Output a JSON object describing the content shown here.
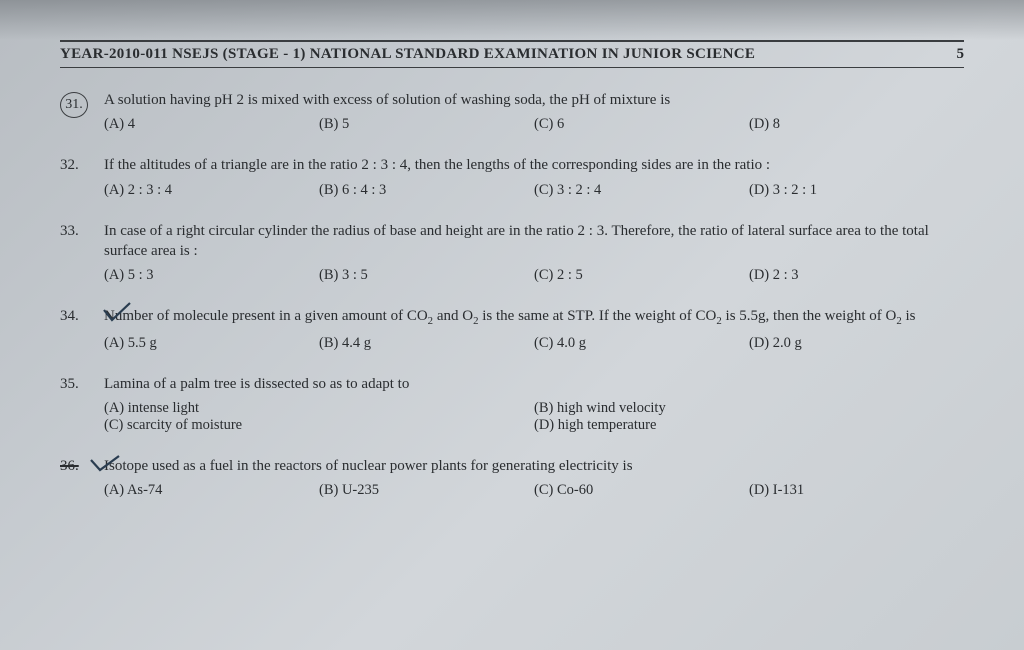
{
  "header": {
    "title": "YEAR-2010-011 NSEJS (STAGE - 1) NATIONAL STANDARD EXAMINATION IN JUNIOR SCIENCE",
    "page_number": "5"
  },
  "questions": [
    {
      "num": "31.",
      "circled": true,
      "text": "A solution having pH 2 is mixed with excess of solution of washing soda, the pH of mixture is",
      "opts": [
        "(A) 4",
        "(B) 5",
        "(C) 6",
        "(D) 8"
      ],
      "cols": 4
    },
    {
      "num": "32.",
      "circled": false,
      "text": "If the altitudes of a triangle are in the ratio 2 : 3 : 4, then the lengths of the corresponding sides are in the ratio :",
      "opts": [
        "(A) 2 : 3 : 4",
        "(B) 6 : 4 : 3",
        "(C) 3 : 2 : 4",
        "(D) 3 : 2 : 1"
      ],
      "cols": 4
    },
    {
      "num": "33.",
      "circled": false,
      "text": "In case of a right circular cylinder the radius of base and height are in the ratio 2 : 3. Therefore, the ratio of lateral surface area to the total surface area is :",
      "opts": [
        "(A) 5 : 3",
        "(B) 3 : 5",
        "(C) 2 : 5",
        "(D) 2 : 3"
      ],
      "cols": 4
    },
    {
      "num": "34.",
      "circled": false,
      "checkmark": true,
      "text_html": "Number of molecule present in a given amount of CO<sub>2</sub> and O<sub>2</sub> is the same at STP. If the weight of CO<sub>2</sub> is 5.5g, then the weight of O<sub>2</sub> is",
      "opts": [
        "(A) 5.5 g",
        "(B) 4.4 g",
        "(C) 4.0 g",
        "(D) 2.0 g"
      ],
      "cols": 4
    },
    {
      "num": "35.",
      "circled": false,
      "text": "Lamina of a palm tree is dissected so as to adapt to",
      "opts": [
        "(A) intense light",
        "(B) high wind velocity",
        "(C) scarcity of moisture",
        "(D) high temperature"
      ],
      "cols": 2
    },
    {
      "num": "36.",
      "circled": false,
      "strike": true,
      "text": "Isotope used as a fuel in the reactors of nuclear power plants for generating electricity is",
      "opts": [
        "(A) As-74",
        "(B) U-235",
        "(C) Co-60",
        "(D) I-131"
      ],
      "cols": 4
    }
  ],
  "colors": {
    "text": "#2a2d30",
    "rule": "#3a3d40",
    "bg_grad_from": "#b8bdc2",
    "bg_grad_to": "#c8cdd1"
  },
  "typography": {
    "title_fontsize": 15,
    "question_fontsize": 15,
    "option_fontsize": 14.5,
    "font_family": "Times New Roman, serif"
  }
}
